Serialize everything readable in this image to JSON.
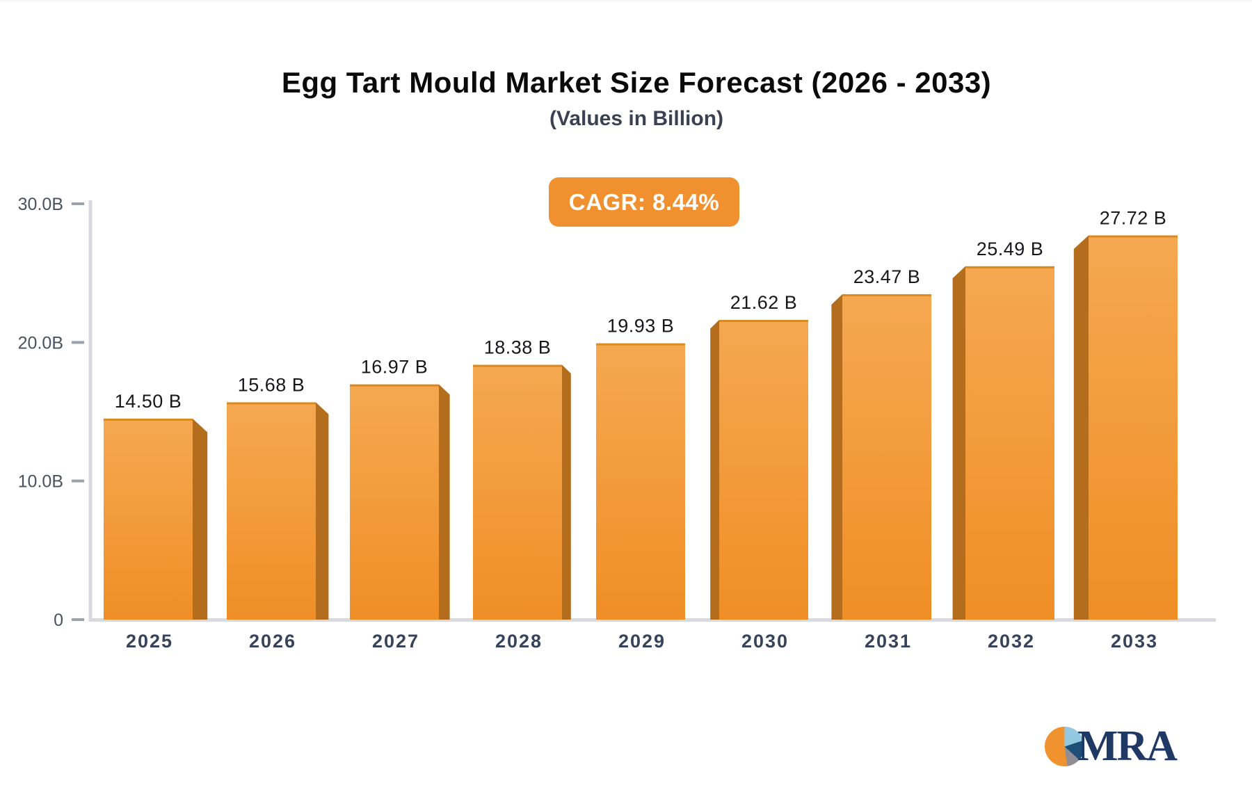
{
  "header": {
    "title": "Egg Tart Mould Market Size Forecast (2026 - 2033)",
    "subtitle": "(Values in Billion)"
  },
  "badge": {
    "label": "CAGR: 8.44%"
  },
  "logo": {
    "text": "MRA",
    "icon": "pie-chart-icon"
  },
  "chart_data": {
    "type": "bar",
    "title": "Egg Tart Mould Market Size Forecast (2026 - 2033)",
    "subtitle": "(Values in Billion)",
    "cagr_label": "CAGR: 8.44%",
    "categories": [
      "2025",
      "2026",
      "2027",
      "2028",
      "2029",
      "2030",
      "2031",
      "2032",
      "2033"
    ],
    "values": [
      14.5,
      15.68,
      16.97,
      18.38,
      19.93,
      21.62,
      23.47,
      25.49,
      27.72
    ],
    "bar_labels": [
      "14.50 B",
      "15.68 B",
      "16.97 B",
      "18.38 B",
      "19.93 B",
      "21.62 B",
      "23.47 B",
      "25.49 B",
      "27.72 B"
    ],
    "unit": "Billion",
    "xlabel": "",
    "ylabel": "",
    "ylim": [
      0,
      30
    ],
    "yticks": [
      {
        "value": 0,
        "label": "0"
      },
      {
        "value": 10,
        "label": "10.0B"
      },
      {
        "value": 20,
        "label": "20.0B"
      },
      {
        "value": 30,
        "label": "30.0B"
      }
    ],
    "grid": false,
    "legend": "none",
    "bar_style": "3d-perspective",
    "colors": {
      "bar_front_top": "#F5A851",
      "bar_front_bottom": "#F08E26",
      "bar_side": "#B36D1C",
      "bar_top_edge": "#DB8A20",
      "badge_bg": "#F0902E",
      "badge_text": "#FFFFFF",
      "axis_line": "#D8DADF",
      "tick_mark": "#9AA2AD",
      "ytick_label": "#4A5260",
      "xtick_label": "#36435A",
      "value_label": "#17181C",
      "logo_navy": "#1F3864",
      "logo_navy_slice": "#1F4E79",
      "logo_orange": "#F0922D",
      "logo_blue": "#92C8E0",
      "logo_gray": "#908E94"
    }
  }
}
